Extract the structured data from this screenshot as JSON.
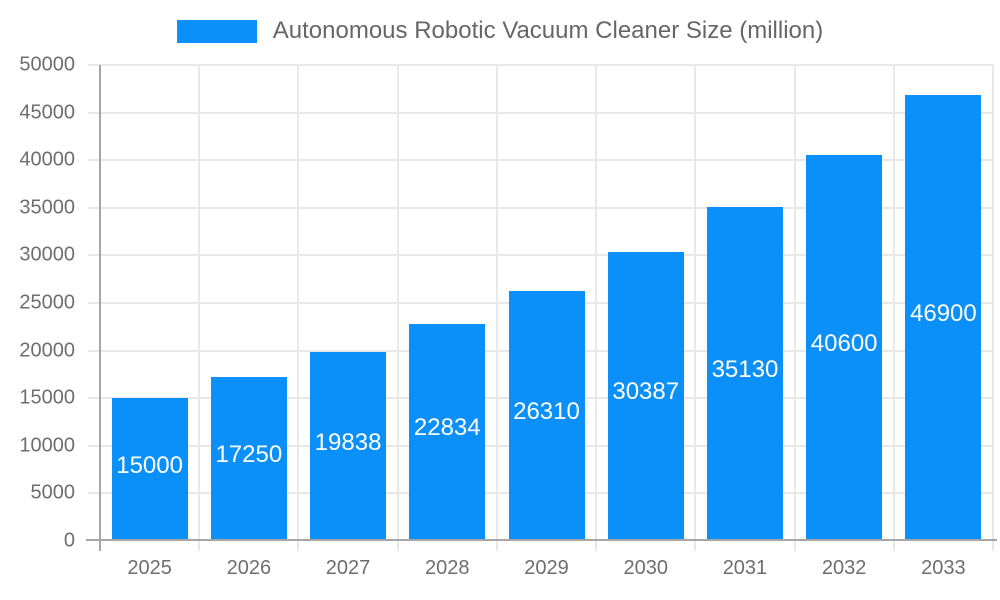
{
  "chart_data": {
    "type": "bar",
    "title": "",
    "legend": {
      "label": "Autonomous Robotic Vacuum Cleaner Size (million)",
      "position": "top"
    },
    "categories": [
      "2025",
      "2026",
      "2027",
      "2028",
      "2029",
      "2030",
      "2031",
      "2032",
      "2033"
    ],
    "series": [
      {
        "name": "Autonomous Robotic Vacuum Cleaner Size (million)",
        "values": [
          15000,
          17250,
          19838,
          22834,
          26310,
          30387,
          35130,
          40600,
          46900
        ]
      }
    ],
    "value_labels": [
      "15000",
      "17250",
      "19838",
      "22834",
      "26310",
      "30387",
      "35130",
      "40600",
      "46900"
    ],
    "xlabel": "",
    "ylabel": "",
    "ylim": [
      0,
      50000
    ],
    "y_ticks": [
      0,
      5000,
      10000,
      15000,
      20000,
      25000,
      30000,
      35000,
      40000,
      45000,
      50000
    ],
    "grid": "horizontal lines at every y tick, vertical lines at category boundaries",
    "colors": {
      "bar": "#0a90f8",
      "axis_line": "#a6a6a6",
      "gridline": "#e8e8e8",
      "tick_label": "#6e6e6e",
      "legend_text": "#666666",
      "value_label": "#ffffff",
      "background": "#ffffff"
    }
  }
}
